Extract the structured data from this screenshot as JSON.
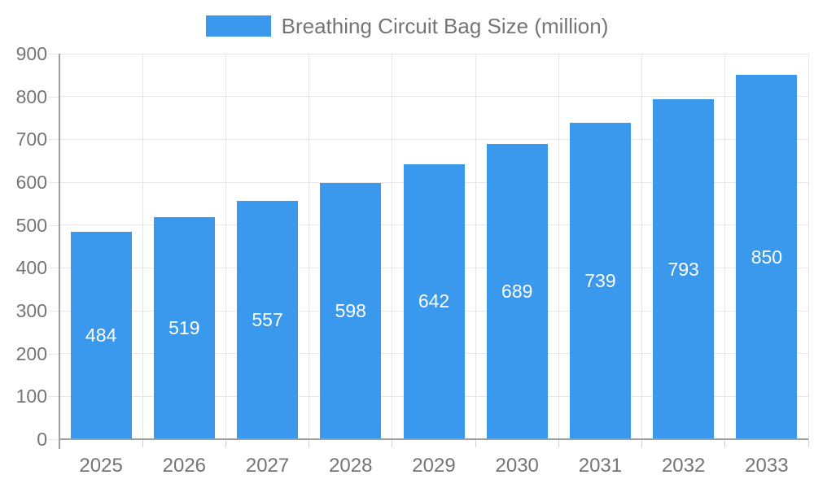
{
  "legend": {
    "label": "Breathing Circuit Bag Size (million)"
  },
  "chart_data": {
    "type": "bar",
    "title": "Breathing Circuit Bag Size (million)",
    "legend_entries": [
      "Breathing Circuit Bag Size (million)"
    ],
    "legend_position": "top",
    "categories": [
      "2025",
      "2026",
      "2027",
      "2028",
      "2029",
      "2030",
      "2031",
      "2032",
      "2033"
    ],
    "series": [
      {
        "name": "Breathing Circuit Bag Size (million)",
        "values": [
          484,
          519,
          557,
          598,
          642,
          689,
          739,
          793,
          850
        ]
      }
    ],
    "values": [
      484,
      519,
      557,
      598,
      642,
      689,
      739,
      793,
      850
    ],
    "bar_value_labels": [
      "484",
      "519",
      "557",
      "598",
      "642",
      "689",
      "739",
      "793",
      "850"
    ],
    "xlabel": "",
    "ylabel": "",
    "ylim": [
      0,
      900
    ],
    "yticks": [
      0,
      100,
      200,
      300,
      400,
      500,
      600,
      700,
      800,
      900
    ],
    "grid": true,
    "colors": {
      "bar": "#3A99EC",
      "bar_label": "#FFFFFF",
      "grid": "#E6E6E6",
      "axis": "#9E9E9E",
      "tick": "#CFCFCF",
      "text": "#757575",
      "background": "#FFFFFF"
    }
  }
}
